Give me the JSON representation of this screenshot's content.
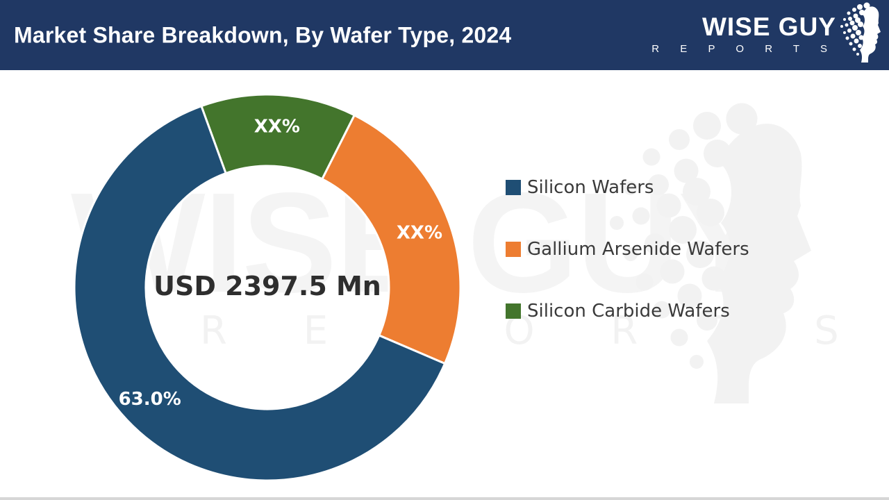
{
  "header": {
    "title": "Market Share Breakdown, By Wafer Type, 2024",
    "logo": {
      "brand": "WISE GUY",
      "reports": "R E P O R T S"
    }
  },
  "chart_data": {
    "type": "pie",
    "subtype": "donut",
    "title": "Market Share Breakdown, By Wafer Type, 2024",
    "center_label": "USD 2397.5 Mn",
    "start_angle_deg": -20,
    "direction": "clockwise",
    "legend_position": "right",
    "slices": [
      {
        "label": "Silicon Carbide Wafers",
        "value_pct": 13,
        "display_label": "XX%",
        "color": "#43752C"
      },
      {
        "label": "Gallium Arsenide Wafers",
        "value_pct": 24,
        "display_label": "XX%",
        "color": "#ED7D31"
      },
      {
        "label": "Silicon Wafers",
        "value_pct": 63,
        "display_label": "63.0%",
        "color": "#1F4E74"
      }
    ]
  },
  "legend": {
    "items": [
      {
        "label": "Silicon Wafers",
        "color": "#1F4E74"
      },
      {
        "label": "Gallium Arsenide Wafers",
        "color": "#ED7D31"
      },
      {
        "label": "Silicon Carbide Wafers",
        "color": "#43752C"
      }
    ]
  },
  "watermark": {
    "brand": "WISE GUY",
    "reports": "R E P O R T S"
  },
  "colors": {
    "header_bg": "#203864",
    "header_text": "#FFFFFF",
    "percent_label": "#FFFFFF",
    "center_text": "#2E2E2E",
    "legend_text": "#3A3A3A",
    "watermark": "#F3F3F3",
    "footer_line": "#D6D6D6"
  }
}
